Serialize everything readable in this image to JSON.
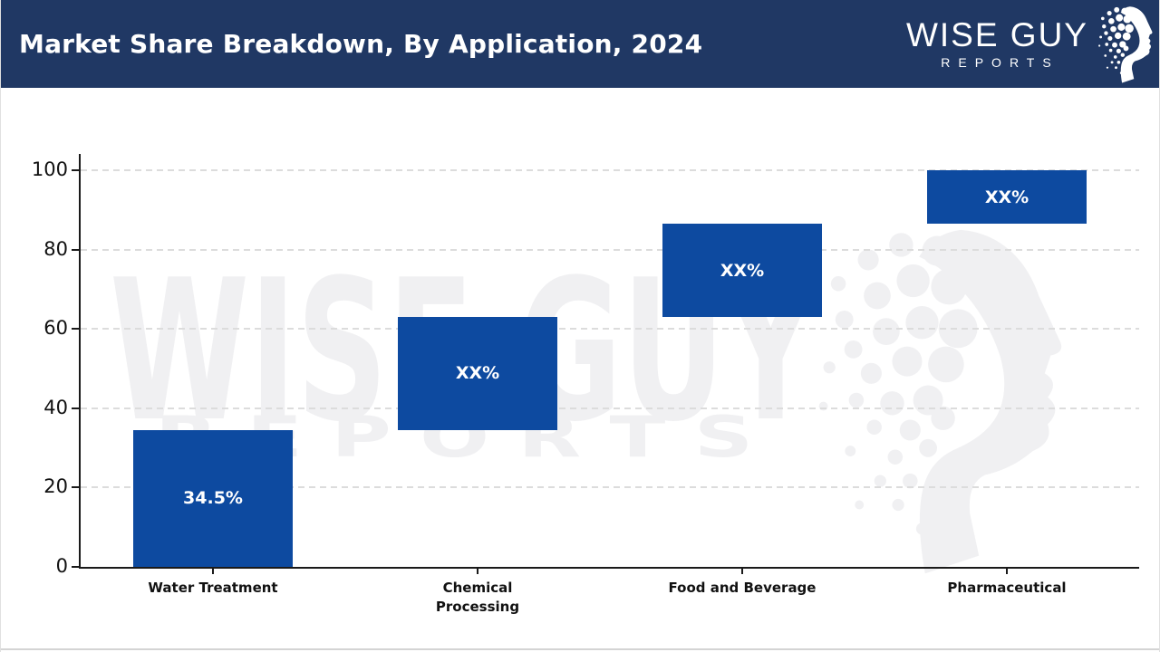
{
  "header": {
    "title": "Market Share Breakdown, By Application, 2024",
    "logo_line1": "WISE GUY",
    "logo_line2": "REPORTS"
  },
  "watermark": {
    "line1": "WISE GUY",
    "line2": "R E P O R T S"
  },
  "colors": {
    "header_bg": "#203864",
    "bar": "#0d4aa0",
    "bar_label": "#ffffff",
    "axis": "#1a1a1a",
    "gridline": "#dcdcdc",
    "tick_label": "#111111",
    "title_text": "#ffffff",
    "watermark": "#f0f0f2"
  },
  "chart_data": {
    "type": "bar",
    "subtype": "waterfall",
    "title": "Market Share Breakdown, By Application, 2024",
    "categories": [
      "Water Treatment",
      "Chemical\nProcessing",
      "Food and Beverage",
      "Pharmaceutical"
    ],
    "segments": [
      {
        "category": "Water Treatment",
        "start": 0,
        "end": 34.5,
        "label": "34.5%"
      },
      {
        "category": "Chemical Processing",
        "start": 34.5,
        "end": 63,
        "label": "XX%"
      },
      {
        "category": "Food and Beverage",
        "start": 63,
        "end": 86.5,
        "label": "XX%"
      },
      {
        "category": "Pharmaceutical",
        "start": 86.5,
        "end": 100,
        "label": "XX%"
      }
    ],
    "ylim": [
      0,
      104
    ],
    "yticks": [
      0,
      20,
      40,
      60,
      80,
      100
    ],
    "xlabel": "",
    "ylabel": "",
    "grid": "horizontal dashed",
    "legend": "none"
  }
}
